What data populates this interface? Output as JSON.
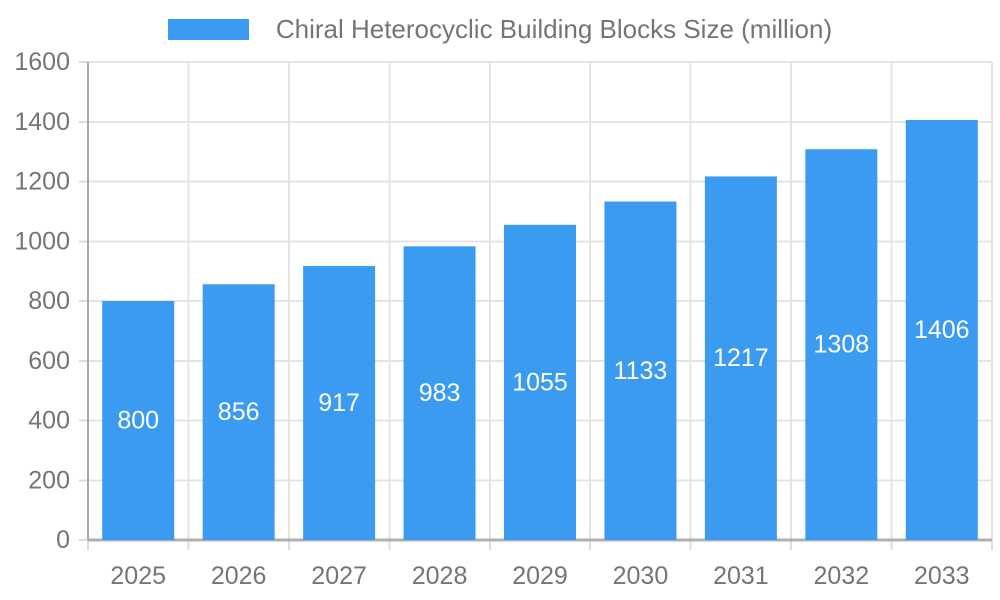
{
  "page": {
    "background": "#ffffff"
  },
  "legend": {
    "label": "Chiral Heterocyclic Building Blocks Size (million)",
    "swatch_color": "#3b9bf1"
  },
  "chart_data": {
    "type": "bar",
    "title": "Chiral Heterocyclic Building Blocks Size (million)",
    "categories": [
      "2025",
      "2026",
      "2027",
      "2028",
      "2029",
      "2030",
      "2031",
      "2032",
      "2033"
    ],
    "values": [
      800,
      856,
      917,
      983,
      1055,
      1133,
      1217,
      1308,
      1406
    ],
    "xlabel": "",
    "ylabel": "",
    "ylim": [
      0,
      1600
    ],
    "ytick_step": 200,
    "ytick_labels": [
      "0",
      "200",
      "400",
      "600",
      "800",
      "1000",
      "1200",
      "1400",
      "1600"
    ],
    "grid": true,
    "legend_position": "top-center",
    "value_labels_inside_bars": true,
    "colors": {
      "bar": "#3b9bf1",
      "value_label": "#ffffff",
      "tick_label": "#757575",
      "grid_line": "#e4e4e4",
      "tick_mark": "#dcdcdc",
      "y_axis_line": "#a8a8a8",
      "x_baseline": "#b0b0b0"
    }
  }
}
